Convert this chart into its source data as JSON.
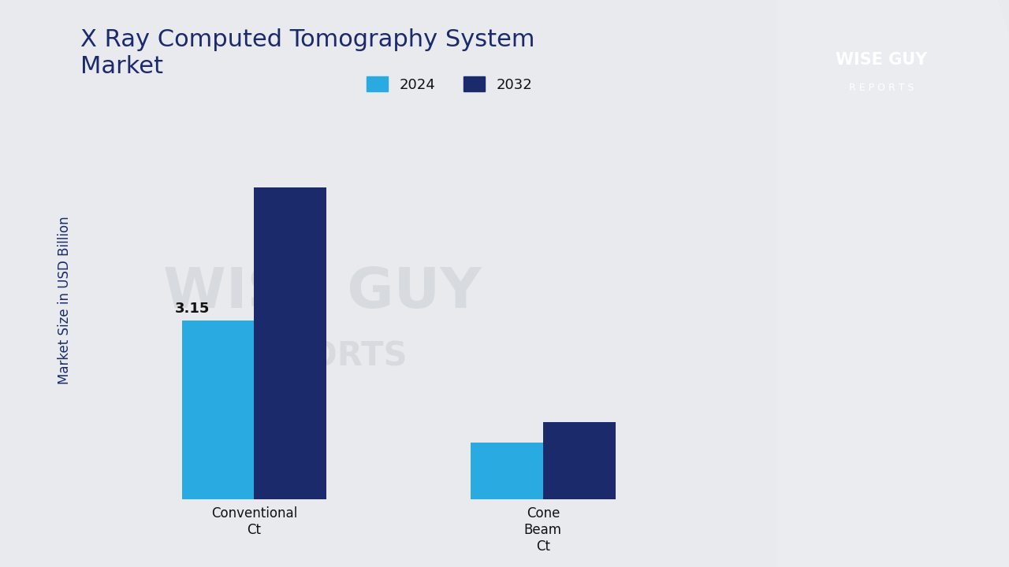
{
  "title": "X Ray Computed Tomography System\nMarket",
  "ylabel": "Market Size in USD Billion",
  "categories": [
    "Conventional\nCt",
    "Cone\nBeam\nCt"
  ],
  "series": [
    {
      "label": "2024",
      "values": [
        3.15,
        1.0
      ],
      "color": "#29ABE2"
    },
    {
      "label": "2032",
      "values": [
        5.5,
        1.35
      ],
      "color": "#1B2A6B"
    }
  ],
  "annotation": {
    "text": "3.15",
    "series_idx": 0,
    "category_idx": 0
  },
  "background_color": "#E8EAED",
  "right_panel_color": "#1B2A6B",
  "title_color": "#1B2A6B",
  "ylabel_color": "#1B2A6B",
  "bar_width": 0.25,
  "ylim": [
    0,
    7
  ],
  "title_fontsize": 22,
  "label_fontsize": 12,
  "legend_fontsize": 13,
  "annotation_fontsize": 13
}
